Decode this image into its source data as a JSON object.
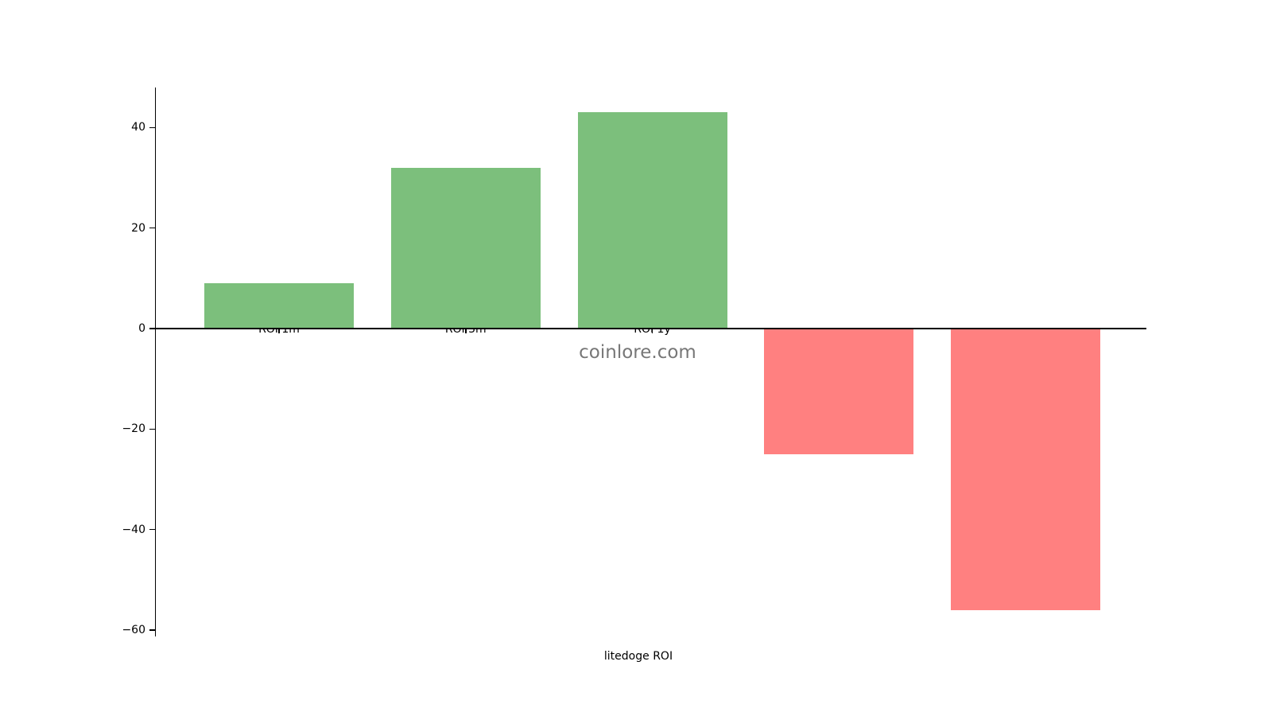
{
  "watermark": {
    "text": "coinlore.com",
    "color": "#777777"
  },
  "chart_data": {
    "type": "bar",
    "title": "litedoge ROI",
    "categories": [
      "ROI 1m",
      "ROI 3m",
      "ROI 1y",
      "",
      ""
    ],
    "values": [
      9,
      32,
      43,
      -25,
      -56
    ],
    "y_ticks": [
      40,
      20,
      0,
      -20,
      -40,
      -60
    ],
    "ylim": [
      -61,
      48
    ],
    "xlabel": "litedoge ROI",
    "ylabel": "",
    "grid": false,
    "legend": null,
    "colors": {
      "positive_bar": "#7CBF7C",
      "negative_bar": "#FF8080",
      "axis": "#000000",
      "tick_label": "#000000"
    }
  }
}
